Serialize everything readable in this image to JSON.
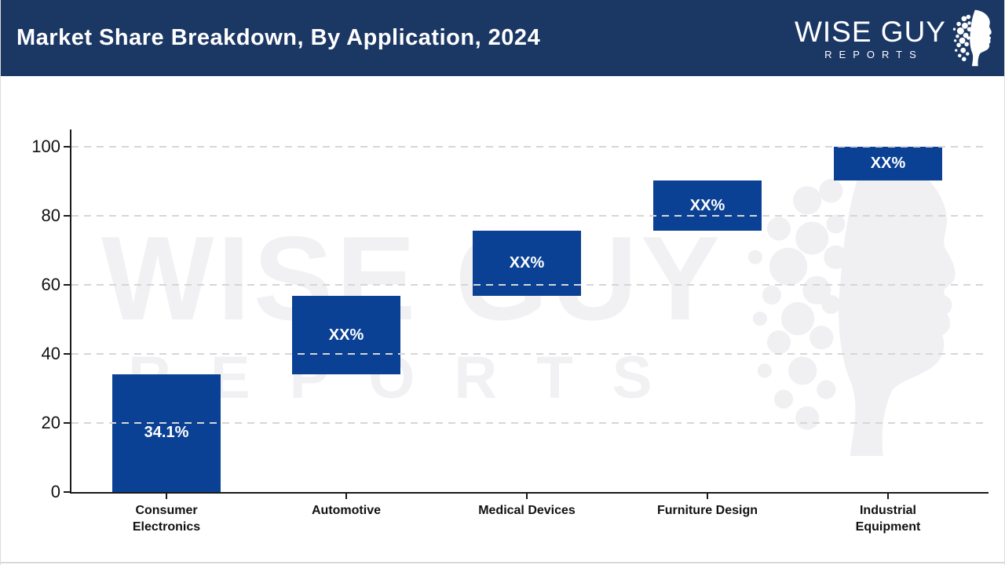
{
  "header": {
    "title": "Market Share Breakdown, By Application, 2024",
    "logo": {
      "line1": "WISE GUY",
      "line2": "REPORTS"
    }
  },
  "watermark": {
    "line1": "WISE GUY",
    "line2": "REPORTS"
  },
  "chart_data": {
    "type": "bar",
    "subtype": "waterfall",
    "title": "Market Share Breakdown, By Application, 2024",
    "categories": [
      "Consumer Electronics",
      "Automotive",
      "Medical Devices",
      "Furniture Design",
      "Industrial Equipment"
    ],
    "bars": [
      {
        "category": "Consumer Electronics",
        "label_lines": [
          "Consumer",
          "Electronics"
        ],
        "start": 0,
        "end": 34.1,
        "value_label": "34.1%"
      },
      {
        "category": "Automotive",
        "label_lines": [
          "Automotive"
        ],
        "start": 34.1,
        "end": 56.8,
        "value_label": "XX%"
      },
      {
        "category": "Medical Devices",
        "label_lines": [
          "Medical Devices"
        ],
        "start": 56.8,
        "end": 75.7,
        "value_label": "XX%"
      },
      {
        "category": "Furniture Design",
        "label_lines": [
          "Furniture Design"
        ],
        "start": 75.7,
        "end": 90.2,
        "value_label": "XX%"
      },
      {
        "category": "Industrial Equipment",
        "label_lines": [
          "Industrial",
          "Equipment"
        ],
        "start": 90.2,
        "end": 100,
        "value_label": "XX%"
      }
    ],
    "ylim": [
      0,
      105
    ],
    "yticks": [
      0,
      20,
      40,
      60,
      80,
      100
    ],
    "grid": "dashed horizontal, drawn above bars",
    "colors": {
      "bar": "#0b4194",
      "header_bg": "#1b3764",
      "grid": "#d6d6d6",
      "axis": "#1a1a1a",
      "bar_label": "#ffffff",
      "watermark": "#f1f1f4"
    }
  }
}
